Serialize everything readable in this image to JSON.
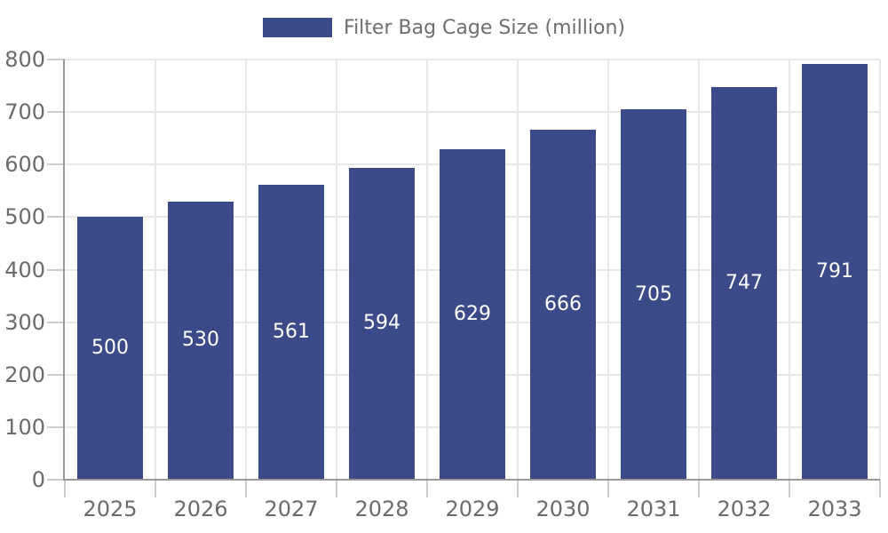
{
  "legend": {
    "label": "Filter Bag Cage Size (million)"
  },
  "colors": {
    "bar": "#3B4B8A",
    "bar_label_text": "#ffffff",
    "grid": "#e7e7e7",
    "axis": "#999999",
    "tick": "#cccccc",
    "label_text": "#6b6b6b",
    "background": "#ffffff"
  },
  "chart_data": {
    "type": "bar",
    "title": "Filter Bag Cage Size (million)",
    "categories": [
      "2025",
      "2026",
      "2027",
      "2028",
      "2029",
      "2030",
      "2031",
      "2032",
      "2033"
    ],
    "values": [
      500,
      530,
      561,
      594,
      629,
      666,
      705,
      747,
      791
    ],
    "xlabel": "",
    "ylabel": "",
    "ylim": [
      0,
      800
    ],
    "yticks": [
      0,
      100,
      200,
      300,
      400,
      500,
      600,
      700,
      800
    ],
    "grid": true,
    "legend_position": "top-center",
    "value_label_position": "inside-center",
    "series": [
      {
        "name": "Filter Bag Cage Size (million)",
        "values": [
          500,
          530,
          561,
          594,
          629,
          666,
          705,
          747,
          791
        ]
      }
    ]
  }
}
